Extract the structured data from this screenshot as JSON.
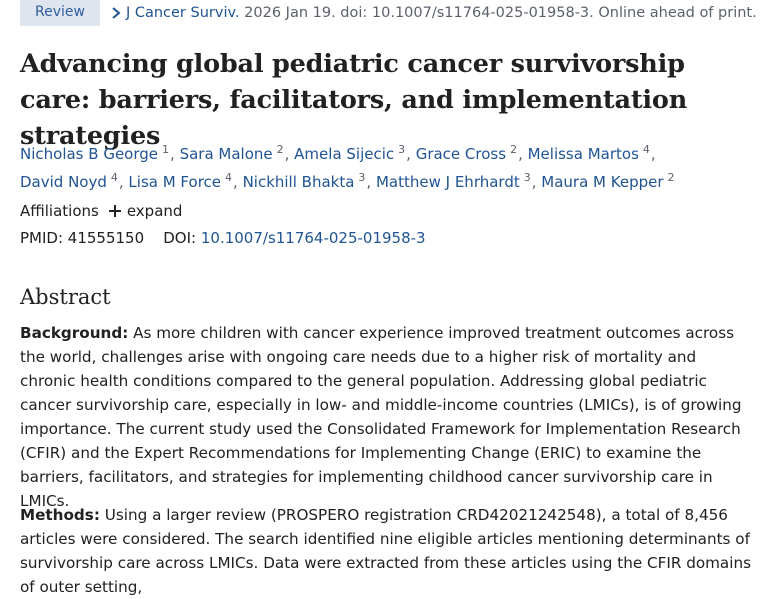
{
  "header": {
    "badge": "Review",
    "journal": "J Cancer Surviv.",
    "citation_rest": " 2026 Jan 19. doi: 10.1007/s11764-025-01958-3. Online ahead of print."
  },
  "title": "Advancing global pediatric cancer survivorship care: barriers, facilitators, and implementation strategies",
  "authors": [
    {
      "name": "Nicholas B George",
      "sup": "1"
    },
    {
      "name": "Sara Malone",
      "sup": "2"
    },
    {
      "name": "Amela Sijecic",
      "sup": "3"
    },
    {
      "name": "Grace Cross",
      "sup": "2"
    },
    {
      "name": "Melissa Martos",
      "sup": "4"
    },
    {
      "name": "David Noyd",
      "sup": "4"
    },
    {
      "name": "Lisa M Force",
      "sup": "4"
    },
    {
      "name": "Nickhill Bhakta",
      "sup": "3"
    },
    {
      "name": "Matthew J Ehrhardt",
      "sup": "3"
    },
    {
      "name": "Maura M Kepper",
      "sup": "2"
    }
  ],
  "affiliations": {
    "label": "Affiliations",
    "expand": "expand"
  },
  "ids": {
    "pmid_label": "PMID:",
    "pmid": "41555150",
    "doi_label": "DOI:",
    "doi": "10.1007/s11764-025-01958-3"
  },
  "abstract": {
    "heading": "Abstract",
    "background_label": "Background:",
    "background_text": "As more children with cancer experience improved treatment outcomes across the world, challenges arise with ongoing care needs due to a higher risk of mortality and chronic health conditions compared to the general population. Addressing global pediatric cancer survivorship care, especially in low- and middle-income countries (LMICs), is of growing importance. The current study used the Consolidated Framework for Implementation Research (CFIR) and the Expert Recommendations for Implementing Change (ERIC) to examine the barriers, facilitators, and strategies for implementing childhood cancer survivorship care in LMICs.",
    "methods_label": "Methods:",
    "methods_text": "Using a larger review (PROSPERO registration CRD42021242548), a total of 8,456 articles were considered. The search identified nine eligible articles mentioning determinants of survivorship care across LMICs. Data were extracted from these articles using the CFIR domains of outer setting,"
  },
  "colors": {
    "link": "#205493",
    "badge_bg": "#dfe5ee",
    "text": "#212121",
    "muted": "#5b616b"
  }
}
